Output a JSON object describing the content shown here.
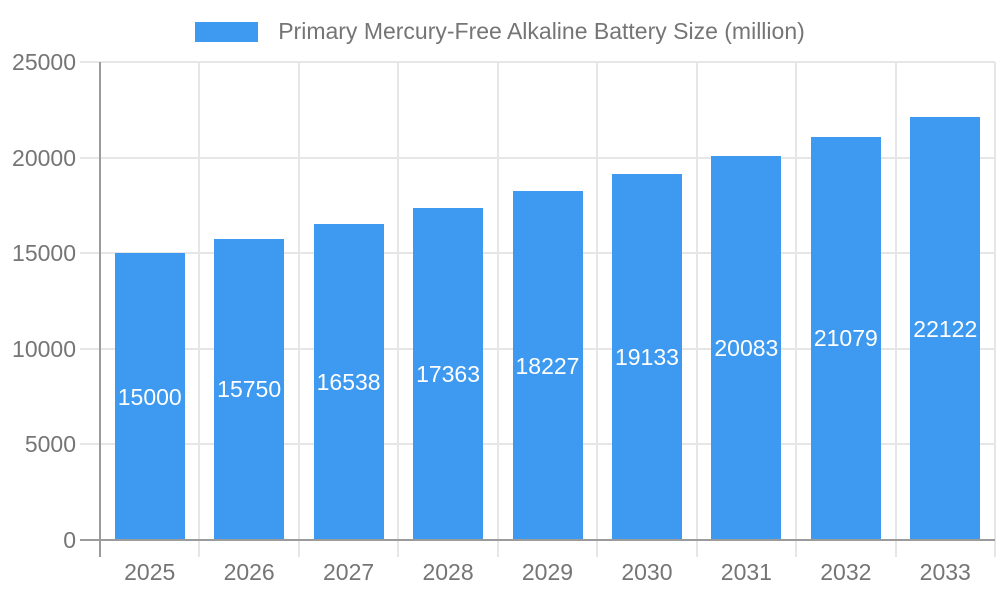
{
  "chart_data": {
    "type": "bar",
    "legend_label": "Primary Mercury-Free Alkaline Battery Size (million)",
    "categories": [
      "2025",
      "2026",
      "2027",
      "2028",
      "2029",
      "2030",
      "2031",
      "2032",
      "2033"
    ],
    "series": [
      {
        "name": "Primary Mercury-Free Alkaline Battery Size (million)",
        "values": [
          15000,
          15750,
          16538,
          17363,
          18227,
          19133,
          20083,
          21079,
          22122
        ]
      }
    ],
    "xlabel": "",
    "ylabel": "",
    "ylim": [
      0,
      25000
    ],
    "yticks": [
      0,
      5000,
      10000,
      15000,
      20000,
      25000
    ],
    "grid": true,
    "legend_position": "top",
    "value_labels": "inside-middle",
    "colors": {
      "bar": "#3D9AF0",
      "value_label_text": "#FFFFFF",
      "axis_line": "#9B9B9B",
      "gridline": "#E6E6E6",
      "axis_text": "#757575",
      "background": "#FFFFFF"
    }
  }
}
